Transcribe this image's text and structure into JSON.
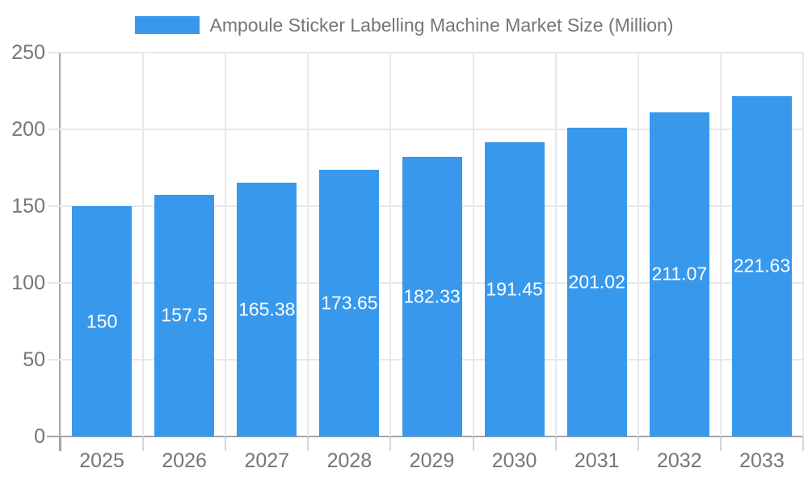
{
  "chart_data": {
    "type": "bar",
    "title": "Ampoule Sticker Labelling Machine Market Size (Million)",
    "legend_entries": [
      "Ampoule Sticker Labelling Machine Market Size (Million)"
    ],
    "legend_position": "top",
    "categories": [
      "2025",
      "2026",
      "2027",
      "2028",
      "2029",
      "2030",
      "2031",
      "2032",
      "2033"
    ],
    "values": [
      150,
      157.5,
      165.38,
      173.65,
      182.33,
      191.45,
      201.02,
      211.07,
      221.63
    ],
    "value_labels": [
      "150",
      "157.5",
      "165.38",
      "173.65",
      "182.33",
      "191.45",
      "201.02",
      "211.07",
      "221.63"
    ],
    "xlabel": "",
    "ylabel": "",
    "ylim": [
      0,
      250
    ],
    "yticks": [
      0,
      50,
      100,
      150,
      200,
      250
    ],
    "grid": true
  },
  "colors": {
    "bar": "#3898ec",
    "axis_line": "#a6a6a6",
    "gridline": "#e8e8e8",
    "tick_text": "#757575",
    "title_text": "#757575",
    "bar_label_text": "#ffffff"
  }
}
